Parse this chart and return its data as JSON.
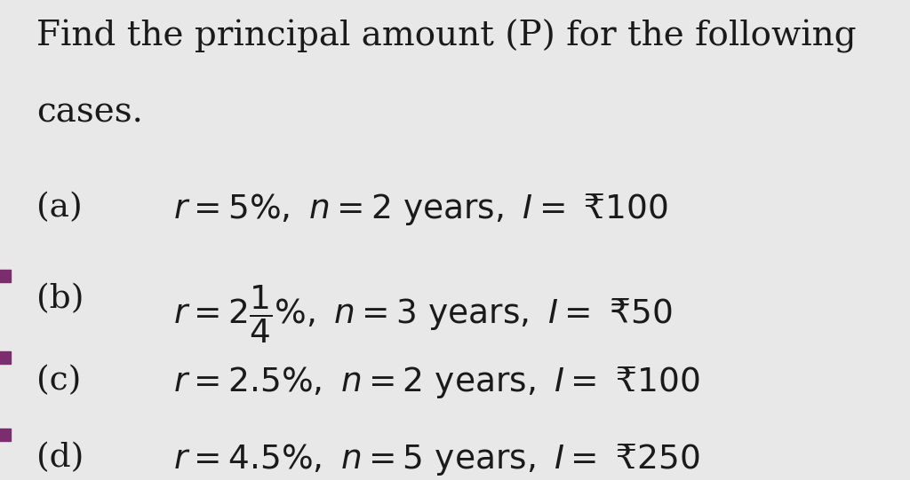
{
  "background_color": "#e8e8e8",
  "title_line1": "Find the principal amount (P) for the following",
  "title_line2": "cases.",
  "bullet_color": "#7b2d6e",
  "text_color": "#1a1a1a",
  "font_size_title": 28,
  "font_size_items": 27,
  "items": [
    {
      "label": "(a)",
      "text": "r = 5%, n = 2 years, I = ₹100",
      "has_bullet": false
    },
    {
      "label": "(b)",
      "has_bullet": true
    },
    {
      "label": "(c)",
      "text": "r = 2.5%, n = 2 years, I = ₹100",
      "has_bullet": true
    },
    {
      "label": "(d)",
      "text": "r = 4.5%, n = 5 years, I = ₹250",
      "has_bullet": true
    }
  ]
}
